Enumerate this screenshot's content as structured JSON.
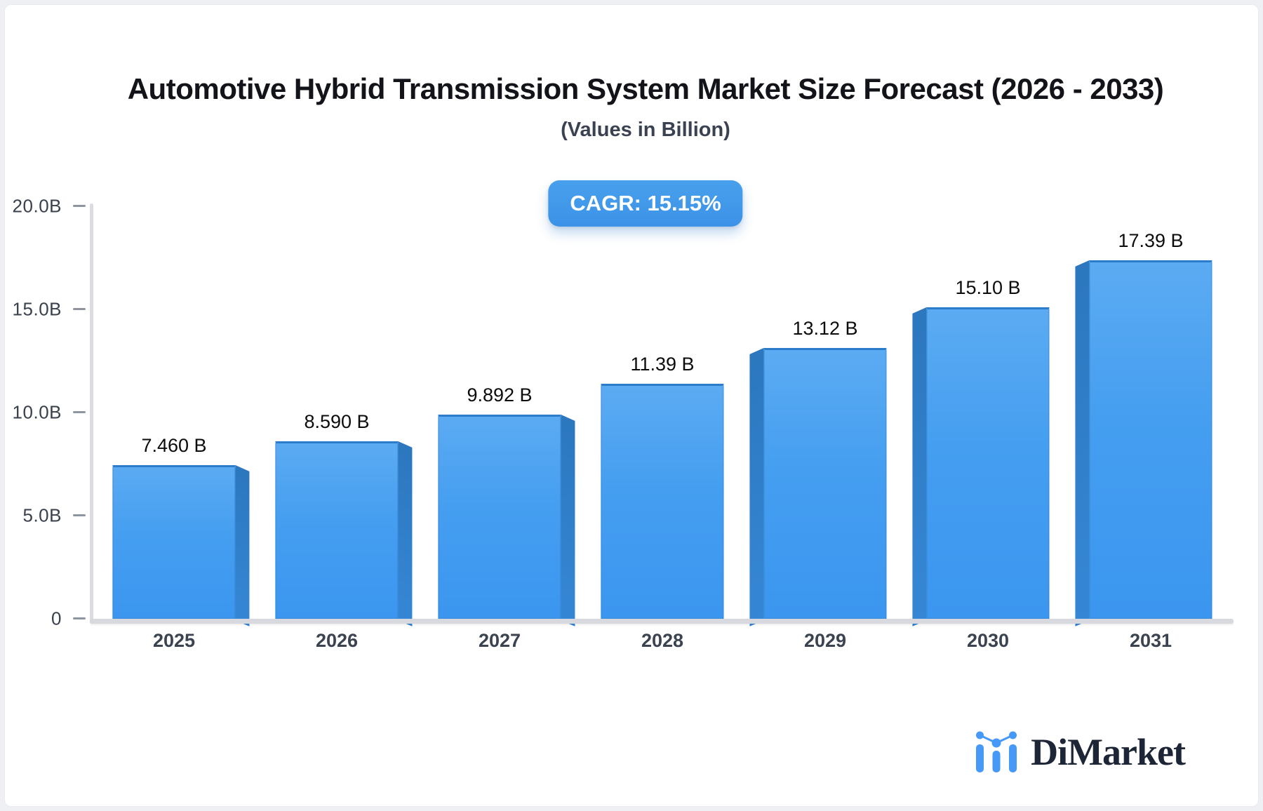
{
  "chart_data": {
    "type": "bar",
    "title": "Automotive Hybrid Transmission System Market Size Forecast (2026 - 2033)",
    "subtitle": "(Values in Billion)",
    "cagr_label": "CAGR: 15.15%",
    "categories": [
      "2025",
      "2026",
      "2027",
      "2028",
      "2029",
      "2030",
      "2031"
    ],
    "values": [
      7.46,
      8.59,
      9.892,
      11.39,
      13.12,
      15.1,
      17.39
    ],
    "value_labels": [
      "7.460 B",
      "8.590 B",
      "9.892 B",
      "11.39 B",
      "13.12 B",
      "15.10 B",
      "17.39 B"
    ],
    "xlabel": "",
    "ylabel": "",
    "ylim": [
      0,
      20
    ],
    "yticks": [
      {
        "value": 20.0,
        "label": "20.0B"
      },
      {
        "value": 15.0,
        "label": "15.0B"
      },
      {
        "value": 10.0,
        "label": "10.0B"
      },
      {
        "value": 5.0,
        "label": "5.0B"
      },
      {
        "value": 0,
        "label": "0"
      }
    ],
    "grid": false,
    "legend": false,
    "style_3d": true,
    "bar_colors": {
      "face_top": "#5babf2",
      "face_bottom": "#3b96ef",
      "side": "#2e7bc3",
      "top_edge": "#2b7ccb"
    }
  },
  "badge": {
    "background": "#3f97e9",
    "text_color": "#ffffff"
  },
  "axis_colors": {
    "axis_line": "#dadce1",
    "tick_dash": "#8f95a0",
    "tick_label": "#39414d",
    "year_label": "#3a434f",
    "value_label": "#0b0c0e"
  },
  "footer": {
    "brand": "DiMarket",
    "icon": "mini-bar-chart-icon",
    "brand_color": "#1d2636",
    "icon_color": "#4799f7"
  }
}
